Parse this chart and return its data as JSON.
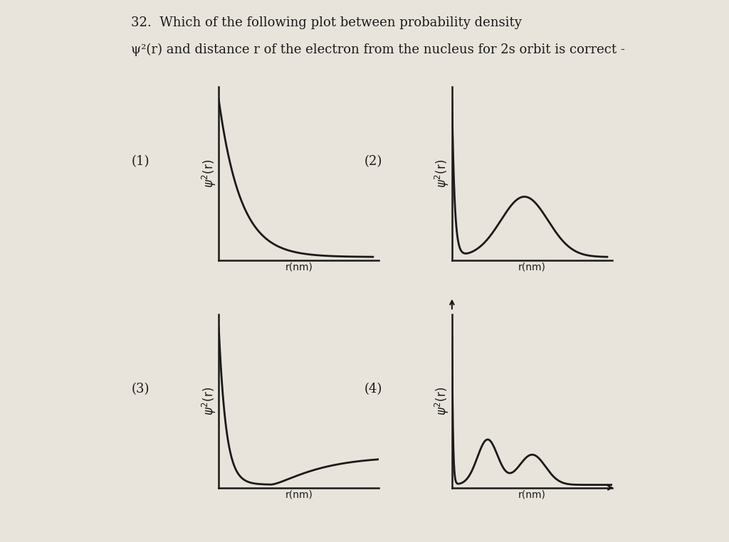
{
  "background_color": "#e8e4dc",
  "plot_bg": "#e8e4dc",
  "line_color": "#1a1a1a",
  "axis_color": "#1a1a1a",
  "text_color": "#1a1a1a",
  "font_size_label": 12,
  "font_size_axis": 10,
  "font_size_number": 13,
  "title_line1": "32.  Which of the following plot between probability density",
  "title_line2": "ψ²(r) and distance r of the electron from the nucleus for 2s orbit is correct -",
  "labels": [
    "(1)",
    "(2)",
    "(3)",
    "(4)"
  ],
  "ylabel": "ψ²(r)",
  "xlabel": "r(nm)"
}
